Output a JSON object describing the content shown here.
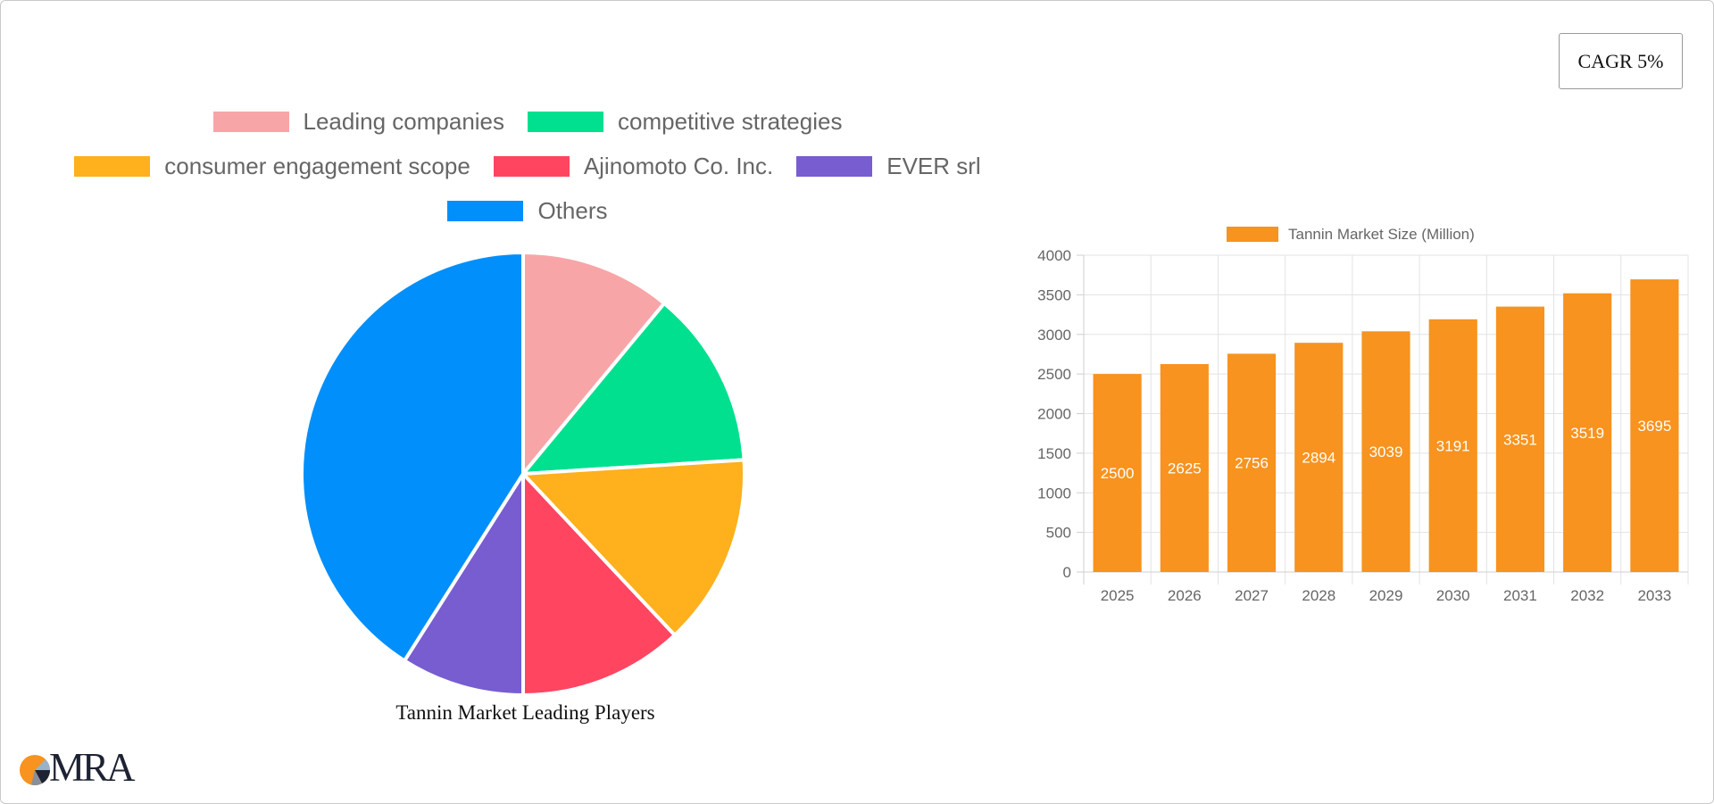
{
  "cagr_label": "CAGR 5%",
  "brand": {
    "logo_text": "MRA"
  },
  "chart_data": [
    {
      "type": "pie",
      "title": "Tannin Market Leading Players",
      "legend_position": "top",
      "labels": [
        "Leading companies",
        "competitive strategies",
        "consumer engagement scope",
        "Ajinomoto Co. Inc.",
        "EVER srl",
        "Others"
      ],
      "values": [
        11,
        13,
        14,
        12,
        9,
        41
      ],
      "colors": [
        "#f8a5a8",
        "#00e08f",
        "#feb01d",
        "#ff4560",
        "#775dd0",
        "#008ffb"
      ]
    },
    {
      "type": "bar",
      "categories": [
        "2025",
        "2026",
        "2027",
        "2028",
        "2029",
        "2030",
        "2031",
        "2032",
        "2033"
      ],
      "series": [
        {
          "name": "Tannin Market Size (Million)",
          "values": [
            2500,
            2625,
            2756,
            2894,
            3039,
            3191,
            3351,
            3519,
            3695
          ],
          "color": "#f7931e"
        }
      ],
      "ylim": [
        0,
        4000
      ],
      "yticks": [
        0,
        500,
        1000,
        1500,
        2000,
        2500,
        3000,
        3500,
        4000
      ],
      "grid": true,
      "legend_position": "top",
      "data_labels": true
    }
  ]
}
